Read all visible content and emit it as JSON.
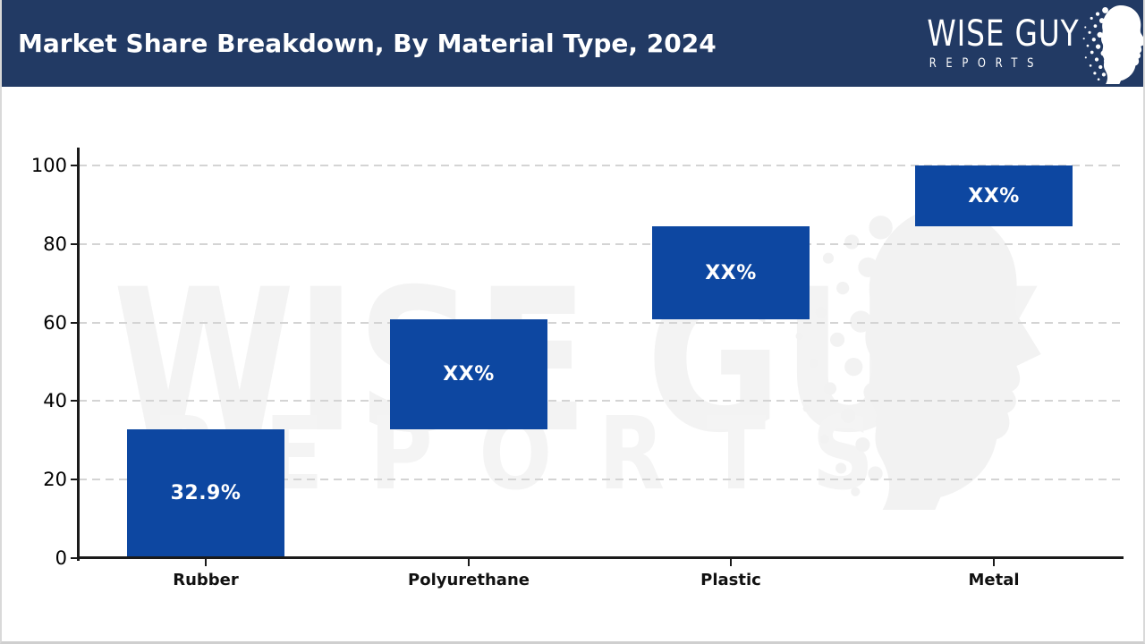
{
  "header": {
    "title": "Market Share Breakdown, By Material Type, 2024",
    "logo": {
      "line1": "WISE GUY",
      "line2": "REPORTS"
    }
  },
  "watermark": {
    "line1": "WISE GUY",
    "line2": "REPORTS"
  },
  "chart_data": {
    "type": "bar",
    "variant": "waterfall",
    "title": "Market Share Breakdown, By Material Type, 2024",
    "categories": [
      "Rubber",
      "Polyurethane",
      "Plastic",
      "Metal"
    ],
    "segments": [
      {
        "category": "Rubber",
        "start": 0,
        "end": 32.9,
        "label": "32.9%"
      },
      {
        "category": "Polyurethane",
        "start": 32.9,
        "end": 60.8,
        "label": "XX%"
      },
      {
        "category": "Plastic",
        "start": 60.8,
        "end": 84.5,
        "label": "XX%"
      },
      {
        "category": "Metal",
        "start": 84.5,
        "end": 100,
        "label": "XX%"
      }
    ],
    "xlabel": "",
    "ylabel": "",
    "ylim": [
      0,
      104
    ],
    "yticks": [
      0,
      20,
      40,
      60,
      80,
      100
    ],
    "grid": "horizontal-dashed",
    "legend": "none",
    "colors": {
      "bar": "#0d47a1",
      "bar_label": "#ffffff",
      "header_bg": "#223a64",
      "axis": "#1a1a1a",
      "grid": "#d4d4d4",
      "watermark": "#f2f2f2"
    }
  }
}
